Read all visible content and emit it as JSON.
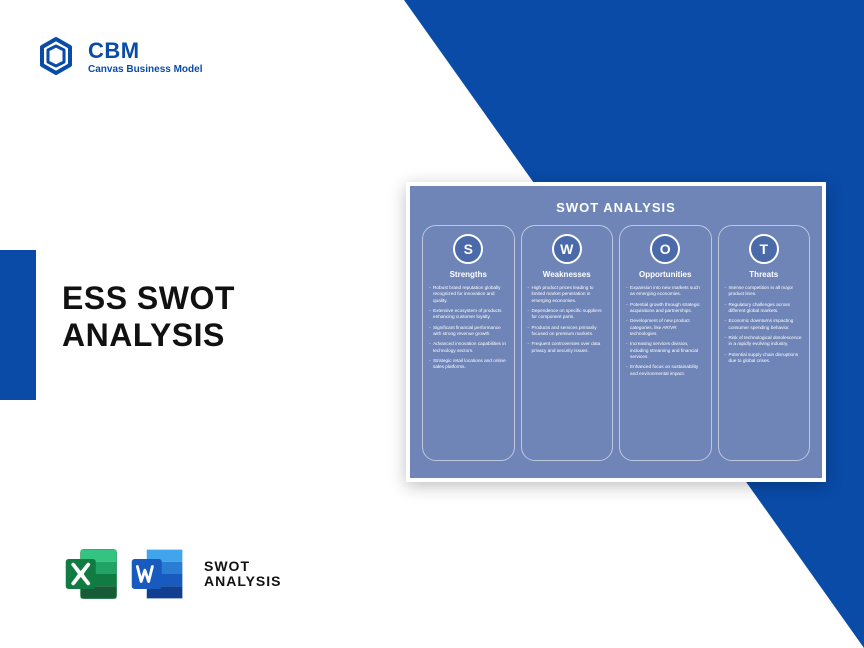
{
  "colors": {
    "brand_blue": "#0a4ba8",
    "card_bg": "#6f84b7",
    "circle_bg": "#4b6aa9",
    "white": "#ffffff",
    "text_dark": "#111111",
    "excel_green_dark": "#107c41",
    "excel_green_light": "#21a366",
    "word_blue_dark": "#103f91",
    "word_blue_mid": "#185abd",
    "word_blue_light": "#2b7cd3"
  },
  "logo": {
    "abbr": "CBM",
    "sub": "Canvas Business Model"
  },
  "title": {
    "line1": "ESS SWOT",
    "line2": "ANALYSIS"
  },
  "footer": {
    "line1": "SWOT",
    "line2": "ANALYSIS"
  },
  "swot": {
    "type": "swot-matrix",
    "title": "SWOT ANALYSIS",
    "columns": [
      {
        "letter": "S",
        "heading": "Strengths",
        "items": [
          "Robust brand reputation globally recognized for innovation and quality.",
          "Extensive ecosystem of products enhancing customer loyalty.",
          "Significant financial performance with strong revenue growth.",
          "Advanced innovation capabilities in technology sectors.",
          "Strategic retail locations and online sales platforms."
        ]
      },
      {
        "letter": "W",
        "heading": "Weaknesses",
        "items": [
          "High product prices leading to limited market penetration in emerging economies.",
          "Dependence on specific suppliers for component parts.",
          "Products and services primarily focused on premium markets.",
          "Frequent controversies over data privacy and security issues."
        ]
      },
      {
        "letter": "O",
        "heading": "Opportunities",
        "items": [
          "Expansion into new markets such as emerging economies.",
          "Potential growth through strategic acquisitions and partnerships.",
          "Development of new product categories, like AR/VR technologies.",
          "Increasing services division, including streaming and financial services.",
          "Enhanced focus on sustainability and environmental impact."
        ]
      },
      {
        "letter": "T",
        "heading": "Threats",
        "items": [
          "Intense competition in all major product lines.",
          "Regulatory challenges across different global markets.",
          "Economic downturns impacting consumer spending behavior.",
          "Risk of technological obsolescence in a rapidly evolving industry.",
          "Potential supply chain disruptions due to global crises."
        ]
      }
    ]
  }
}
